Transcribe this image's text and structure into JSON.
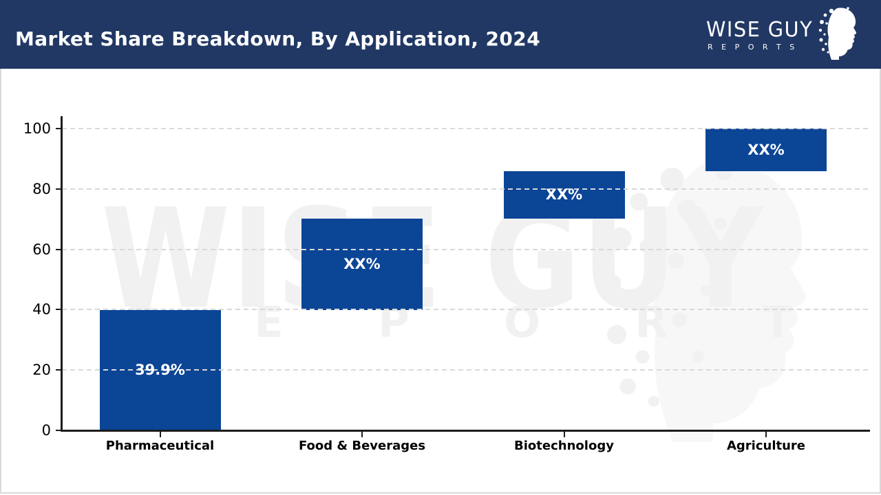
{
  "header": {
    "title": "Market Share Breakdown, By Application, 2024",
    "bg_color": "#213864",
    "logo": {
      "line1": "WISE GUY",
      "line2": "R E P O R T S"
    }
  },
  "watermark": {
    "line1": "WISE GUY",
    "line2": "R E P O R T S",
    "color": "#f1f1f1"
  },
  "colors": {
    "bar_blue": "#0b4596",
    "bar_label": "#ffffff",
    "gridline": "#d9d9d9",
    "axis": "#1c1c1c",
    "header_navy": "#213864"
  },
  "chart_data": {
    "type": "bar",
    "subtype": "waterfall",
    "title": "Market Share Breakdown, By Application, 2024",
    "categories": [
      "Pharmaceutical",
      "Food & Beverages",
      "Biotechnology",
      "Agriculture"
    ],
    "bars": [
      {
        "category": "Pharmaceutical",
        "start": 0,
        "end": 39.9,
        "label": "39.9%"
      },
      {
        "category": "Food & Beverages",
        "start": 39.9,
        "end": 70.2,
        "label": "XX%"
      },
      {
        "category": "Biotechnology",
        "start": 70.2,
        "end": 85.9,
        "label": "XX%"
      },
      {
        "category": "Agriculture",
        "start": 85.9,
        "end": 100,
        "label": "XX%"
      }
    ],
    "bar_color": "#0b4596",
    "xlabel": "",
    "ylabel": "",
    "ylim": [
      0,
      104
    ],
    "y_ticks": [
      0,
      20,
      40,
      60,
      80,
      100
    ],
    "y_tick_labels": [
      "0",
      "20",
      "40",
      "60",
      "80",
      "100"
    ],
    "grid": "horizontal dashed",
    "legend": "none"
  }
}
